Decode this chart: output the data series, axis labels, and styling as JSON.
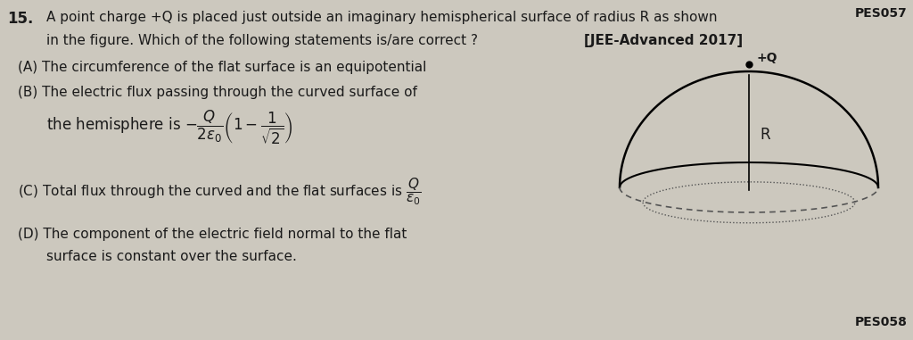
{
  "bg_color": "#ccc8be",
  "question_number": "15.",
  "pes_top": "PES057",
  "pes_bottom": "PES058",
  "title_line1": "A point charge +Q is placed just outside an imaginary hemispherical surface of radius R as shown",
  "title_line2": "in the figure. Which of the following statements is/are correct ?",
  "jee_tag": "[JEE-Advanced 2017]",
  "optA": "(A) The circumference of the flat surface is an equipotential",
  "optB_line1": "(B) The electric flux passing through the curved surface of",
  "optC_text": "(C) Total flux through the curved and the flat surfaces is",
  "optD_line1": "(D) The component of the electric field normal to the flat",
  "optD_line2": "surface is constant over the surface.",
  "text_color": "#1a1a1a",
  "font_size_main": 11.0,
  "font_size_bold": 12.0
}
